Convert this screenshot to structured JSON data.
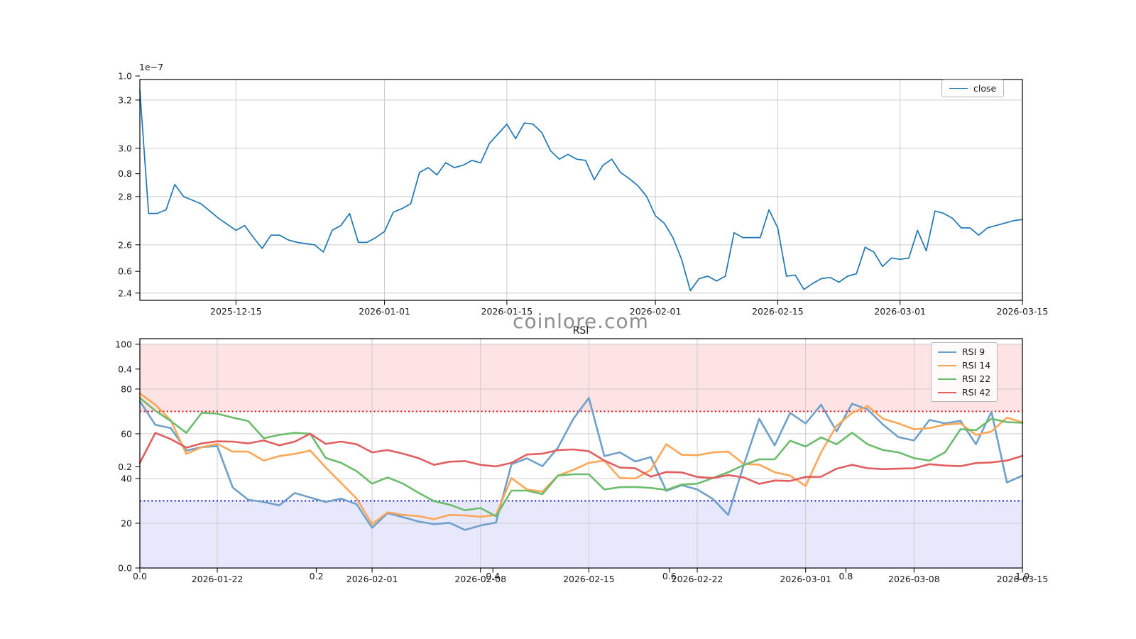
{
  "watermark": "coinlore.com",
  "figure_axis_labels": {
    "y": [
      "1.0",
      "0.8",
      "0.6",
      "0.4",
      "0.2"
    ],
    "x": [
      "0.0",
      "0.2",
      "0.4",
      "0.6",
      "0.8",
      "1.0"
    ]
  },
  "colors": {
    "close": "#1f77b4",
    "rsi9": "#6ea0ca",
    "rsi14": "#ffa656",
    "rsi22": "#6bbd6b",
    "rsi42": "#e25e5f",
    "overbought_line": "#e8000b",
    "oversold_line": "#0000e5",
    "overbought_band": "#ed1c24",
    "oversold_band": "#4444ee",
    "grid": "#cccccc"
  },
  "chart_data": [
    {
      "type": "line",
      "title": "",
      "legend_position": "upper right",
      "grid": true,
      "y_offset_label": "1e−7",
      "ylim": [
        2.37,
        3.285
      ],
      "y_tick_labels": [
        "3.2",
        "3.0",
        "2.8",
        "2.6",
        "2.4"
      ],
      "y_tick_values": [
        3.2,
        3.0,
        2.8,
        2.6,
        2.4
      ],
      "x_tick_labels": [
        "2025-12-15",
        "2026-01-01",
        "2026-01-15",
        "2026-02-01",
        "2026-02-15",
        "2026-03-01",
        "2026-03-15"
      ],
      "x_tick_days": [
        11,
        28,
        42,
        59,
        73,
        87,
        101
      ],
      "series": [
        {
          "name": "close",
          "color_key": "close",
          "values": [
            3.24,
            2.73,
            2.73,
            2.745,
            2.85,
            2.8,
            2.785,
            2.77,
            2.74,
            2.71,
            2.685,
            2.66,
            2.68,
            2.63,
            2.585,
            2.64,
            2.64,
            2.62,
            2.61,
            2.605,
            2.6,
            2.57,
            2.66,
            2.68,
            2.73,
            2.61,
            2.61,
            2.63,
            2.655,
            2.735,
            2.75,
            2.77,
            2.9,
            2.92,
            2.89,
            2.94,
            2.92,
            2.93,
            2.95,
            2.94,
            3.02,
            3.06,
            3.1,
            3.04,
            3.105,
            3.1,
            3.065,
            2.99,
            2.955,
            2.975,
            2.955,
            2.95,
            2.87,
            2.93,
            2.955,
            2.9,
            2.875,
            2.845,
            2.8,
            2.72,
            2.69,
            2.63,
            2.54,
            2.41,
            2.46,
            2.47,
            2.45,
            2.47,
            2.65,
            2.63,
            2.63,
            2.63,
            2.745,
            2.67,
            2.47,
            2.475,
            2.415,
            2.44,
            2.46,
            2.465,
            2.445,
            2.47,
            2.48,
            2.59,
            2.57,
            2.51,
            2.545,
            2.54,
            2.545,
            2.66,
            2.575,
            2.74,
            2.73,
            2.71,
            2.67,
            2.67,
            2.64,
            2.67,
            2.68,
            2.69,
            2.7,
            2.705
          ]
        }
      ]
    },
    {
      "type": "line",
      "title": "RSI",
      "legend_position": "upper right",
      "grid": true,
      "ylim": [
        0,
        102.5
      ],
      "y_tick_labels": [
        "100",
        "80",
        "60",
        "40",
        "20",
        "0.0"
      ],
      "y_tick_values": [
        100,
        80,
        60,
        40,
        20,
        0
      ],
      "x_tick_labels": [
        "2026-01-22",
        "2026-02-01",
        "2026-02-08",
        "2026-02-15",
        "2026-02-22",
        "2026-03-01",
        "2026-03-08",
        "2026-03-15"
      ],
      "x_tick_days": [
        5,
        15,
        22,
        29,
        36,
        43,
        50,
        57
      ],
      "hlines": [
        {
          "y": 70,
          "color_key": "overbought_line"
        },
        {
          "y": 30,
          "color_key": "oversold_line"
        }
      ],
      "bands": [
        {
          "from": 70,
          "to": 100,
          "color_key": "overbought_band",
          "opacity": 0.12
        },
        {
          "from": 0,
          "to": 30,
          "color_key": "oversold_band",
          "opacity": 0.12
        }
      ],
      "series": [
        {
          "name": "RSI 9",
          "color_key": "rsi9",
          "values": [
            74.5,
            64,
            62.5,
            52.5,
            54,
            54.5,
            36,
            30.5,
            29.5,
            28,
            33.5,
            31.5,
            29.5,
            31,
            28.5,
            18,
            24.5,
            22.7,
            20.8,
            19.6,
            20.2,
            17,
            19,
            20.3,
            46.4,
            49,
            45.5,
            53.8,
            66.7,
            76,
            50,
            51.7,
            47.6,
            49.6,
            34.5,
            37,
            35.1,
            30.9,
            23.7,
            46,
            66.7,
            54.8,
            69.3,
            64.6,
            73,
            61.1,
            73.4,
            70.9,
            64.1,
            58.5,
            57,
            66.2,
            64.6,
            65.8,
            55.3,
            69.8,
            38.2,
            41.3
          ]
        },
        {
          "name": "RSI 14",
          "color_key": "rsi14",
          "values": [
            78,
            73,
            66,
            51,
            54,
            55.5,
            52,
            52,
            48,
            50,
            51,
            52.5,
            45,
            38,
            31,
            19.6,
            24.9,
            23.7,
            23.2,
            21.8,
            23.7,
            23.5,
            22.9,
            23.7,
            40.2,
            35.1,
            34.1,
            41.3,
            43.9,
            47,
            48,
            40.2,
            40,
            43.9,
            55.3,
            50.6,
            50.4,
            51.7,
            52,
            46.5,
            46.2,
            42.8,
            41.3,
            36.7,
            51.7,
            63.6,
            69.3,
            72.4,
            66.7,
            64.6,
            62,
            62.5,
            64.1,
            64.6,
            59.5,
            61,
            67.2,
            65.1
          ]
        },
        {
          "name": "RSI 22",
          "color_key": "rsi22",
          "values": [
            76,
            70.3,
            65.7,
            60.4,
            69.4,
            69,
            67.2,
            65.7,
            58,
            59.5,
            60.4,
            60,
            49.2,
            47,
            43.3,
            37.7,
            40.5,
            37.7,
            33.6,
            29.9,
            28.3,
            25.8,
            26.8,
            23.1,
            34.6,
            34.6,
            33,
            41.3,
            41.9,
            41.9,
            35.1,
            36.1,
            36.2,
            35.8,
            34.9,
            37.3,
            37.7,
            40.2,
            42.8,
            46,
            48.6,
            48.6,
            56.9,
            54.3,
            58.4,
            55.3,
            60.5,
            55.3,
            52.7,
            51.7,
            49.1,
            48,
            51.7,
            62,
            61.6,
            66.7,
            65.2,
            64.9
          ]
        },
        {
          "name": "RSI 42",
          "color_key": "rsi42",
          "values": [
            47,
            60.4,
            57.6,
            53.8,
            55.7,
            56.6,
            56.5,
            55.7,
            57,
            54.8,
            56.5,
            60,
            55.5,
            56.5,
            55.3,
            51.7,
            52.7,
            51.1,
            49.1,
            46.1,
            47.5,
            47.8,
            46.1,
            45.4,
            47,
            50.7,
            51.1,
            52.7,
            53,
            52.2,
            48,
            44.9,
            44.6,
            40.8,
            42.9,
            42.7,
            40.7,
            40.2,
            41.5,
            40.5,
            37.6,
            39.1,
            38.9,
            40.7,
            40.8,
            44.4,
            46.1,
            44.6,
            44.2,
            44.4,
            44.6,
            46.4,
            45.8,
            45.5,
            46.9,
            47.2,
            48,
            50.1
          ]
        }
      ]
    }
  ]
}
